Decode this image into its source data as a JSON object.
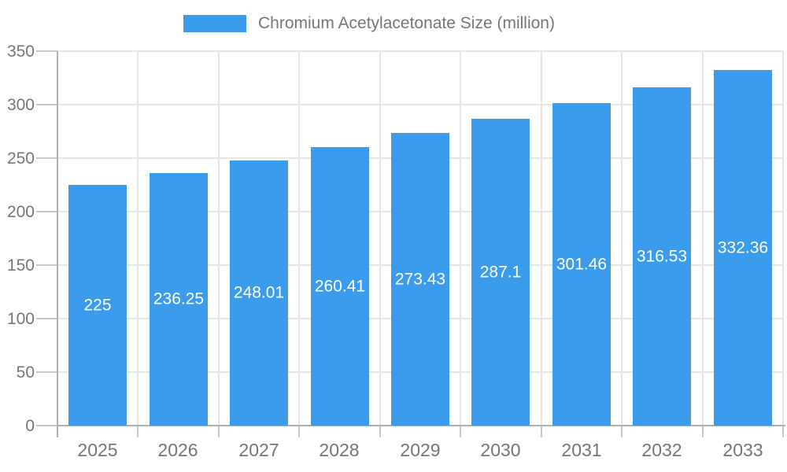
{
  "legend": {
    "label": "Chromium Acetylacetonate Size (million)"
  },
  "colors": {
    "bar": "#3b9cee",
    "grid": "#e6e6e6",
    "axis": "#b0b0b0",
    "tick": "#c6c6c6",
    "text": "#757575",
    "bar_label": "#ffffff"
  },
  "chart_data": {
    "type": "bar",
    "title": "Chromium Acetylacetonate Size (million)",
    "categories": [
      "2025",
      "2026",
      "2027",
      "2028",
      "2029",
      "2030",
      "2031",
      "2032",
      "2033"
    ],
    "values": [
      225,
      236.25,
      248.01,
      260.41,
      273.43,
      287.1,
      301.46,
      316.53,
      332.36
    ],
    "bar_labels": [
      "225",
      "236.25",
      "248.01",
      "260.41",
      "273.43",
      "287.1",
      "301.46",
      "316.53",
      "332.36"
    ],
    "xlabel": "",
    "ylabel": "",
    "ylim": [
      0,
      350
    ],
    "ytick_step": 50,
    "ytick_labels": [
      "0",
      "50",
      "100",
      "150",
      "200",
      "250",
      "300",
      "350"
    ],
    "grid": true,
    "legend_position": "top",
    "bar_label_position": "center-inside"
  }
}
